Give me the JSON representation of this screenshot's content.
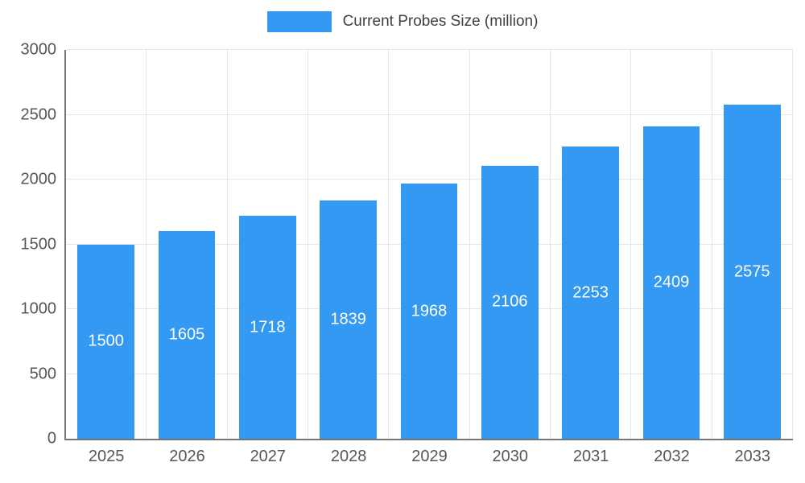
{
  "legend": {
    "label": "Current Probes Size (million)",
    "color": "#3399f3"
  },
  "chart_data": {
    "type": "bar",
    "title": "",
    "xlabel": "",
    "ylabel": "",
    "categories": [
      "2025",
      "2026",
      "2027",
      "2028",
      "2029",
      "2030",
      "2031",
      "2032",
      "2033"
    ],
    "values": [
      1500,
      1605,
      1718,
      1839,
      1968,
      2106,
      2253,
      2409,
      2575
    ],
    "series_name": "Current Probes Size (million)",
    "ylim": [
      0,
      3000
    ],
    "ytick_step": 500,
    "yticks": [
      0,
      500,
      1000,
      1500,
      2000,
      2500,
      3000
    ],
    "bar_color": "#3399f3",
    "value_label_color": "#ffffff",
    "grid": true,
    "legend_position": "top"
  }
}
